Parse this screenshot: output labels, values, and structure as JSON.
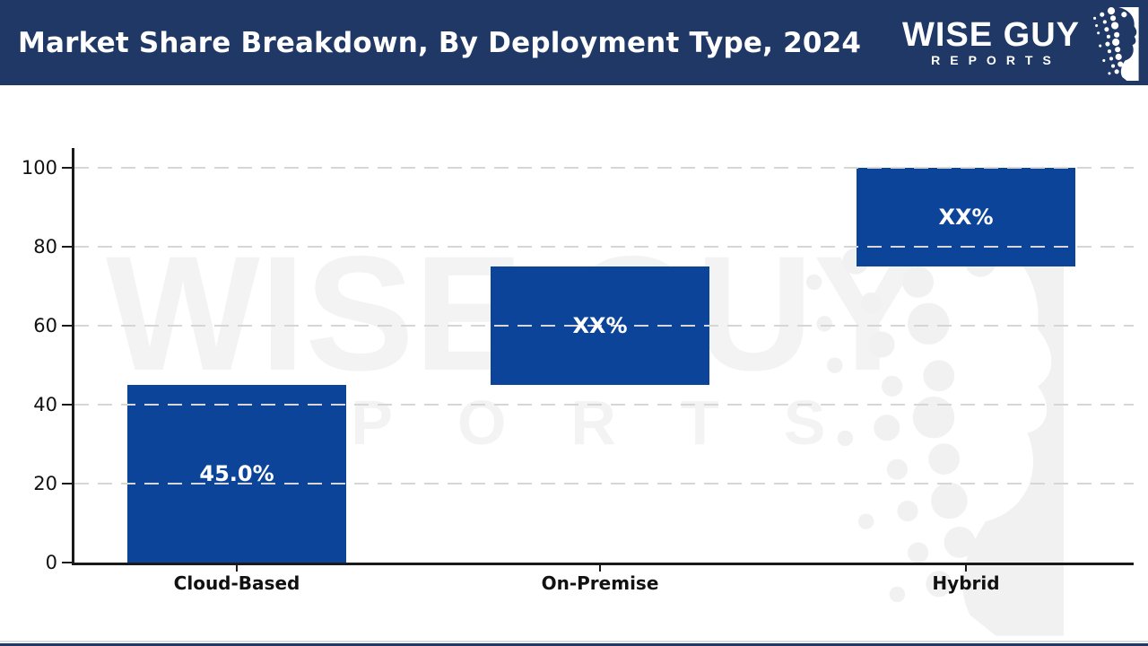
{
  "header": {
    "title": "Market Share Breakdown, By Deployment Type, 2024",
    "logo": {
      "line1": "WISE GUY",
      "line2": "REPORTS"
    }
  },
  "watermark": {
    "line1": "WISE GUY",
    "line2": "REPORTS"
  },
  "colors": {
    "header_bg": "#1F3865",
    "bar": "#0B4499",
    "gridline": "#D6D6D6",
    "axis": "#1A1A1A",
    "watermark": "#F3F3F3",
    "bar_label": "#FFFFFF"
  },
  "chart_data": {
    "type": "bar",
    "subtype": "waterfall",
    "title": "Market Share Breakdown, By Deployment Type, 2024",
    "categories": [
      "Cloud-Based",
      "On-Premise",
      "Hybrid"
    ],
    "bars": [
      {
        "category": "Cloud-Based",
        "from": 0,
        "to": 45,
        "label": "45.0%"
      },
      {
        "category": "On-Premise",
        "from": 45,
        "to": 75,
        "label": "XX%"
      },
      {
        "category": "Hybrid",
        "from": 75,
        "to": 100,
        "label": "XX%"
      }
    ],
    "yticks": [
      0,
      20,
      40,
      60,
      80,
      100
    ],
    "ylim": [
      0,
      105
    ],
    "xlabel": "",
    "ylabel": "",
    "grid": "dashed-horizontal",
    "legend": "none",
    "bar_color": "#0B4499",
    "label_color": "#FFFFFF"
  }
}
